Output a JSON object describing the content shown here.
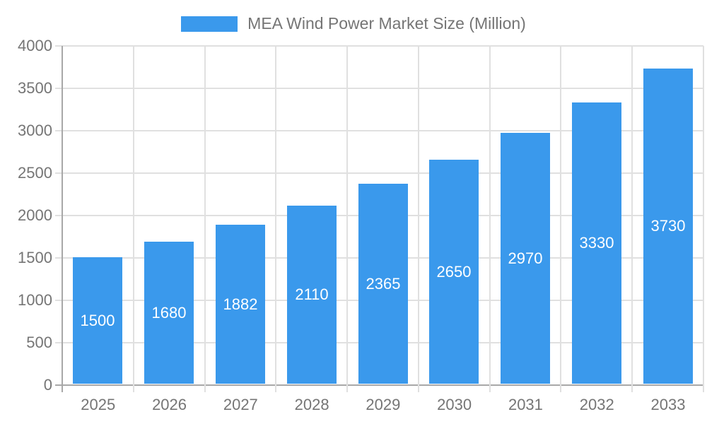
{
  "legend": {
    "label": "MEA Wind Power Market Size (Million)"
  },
  "chart_data": {
    "type": "bar",
    "title": "MEA Wind Power Market Size (Million)",
    "categories": [
      "2025",
      "2026",
      "2027",
      "2028",
      "2029",
      "2030",
      "2031",
      "2032",
      "2033"
    ],
    "values": [
      1500,
      1680,
      1882,
      2110,
      2365,
      2650,
      2970,
      3330,
      3730
    ],
    "xlabel": "",
    "ylabel": "",
    "ylim": [
      0,
      4000
    ],
    "yticks": [
      0,
      500,
      1000,
      1500,
      2000,
      2500,
      3000,
      3500,
      4000
    ],
    "grid": true,
    "legend_position": "top-center",
    "value_labels": "inside-middle"
  },
  "colors": {
    "bar": "#3a99ec",
    "grid": "#e0e0e0",
    "axis": "#a8a8a8",
    "text": "#757575",
    "value_label": "#ffffff",
    "background": "#ffffff"
  }
}
